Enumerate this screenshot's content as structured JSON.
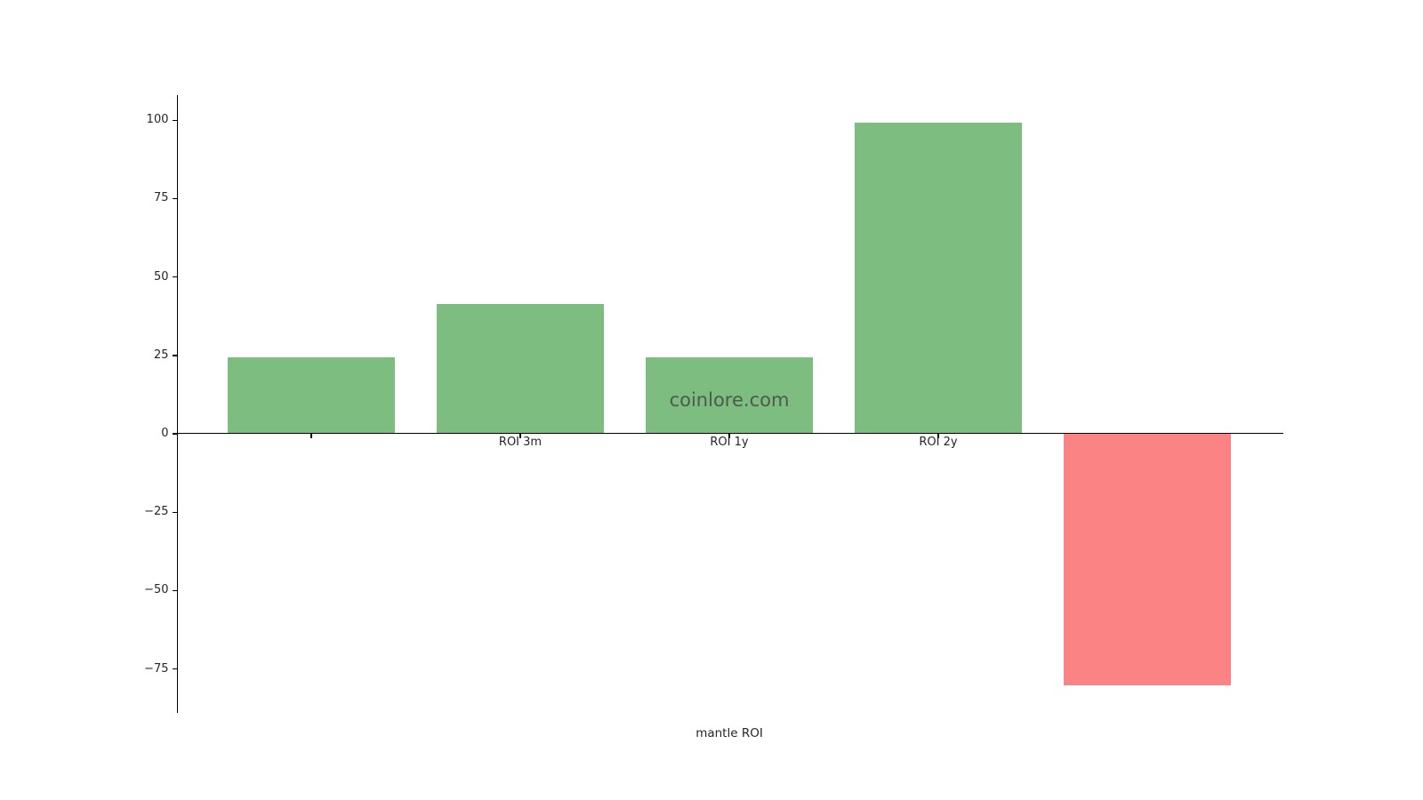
{
  "page": {
    "background": "#ffffff"
  },
  "watermark": {
    "text": "coinlore.com",
    "color": "#3f3f3f"
  },
  "chart_data": {
    "type": "bar",
    "title": "mantle ROI",
    "categories": [
      "",
      "ROI 3m",
      "ROI 1y",
      "ROI 2y",
      ""
    ],
    "values": [
      24,
      41,
      24,
      99,
      -80
    ],
    "bar_colors": {
      "positive": "#7dbd7f",
      "negative": "#fc8383"
    },
    "yticks": [
      100,
      75,
      50,
      25,
      0,
      -25,
      -50,
      -75
    ],
    "ytick_labels": [
      "100",
      "75",
      "50",
      "25",
      "0",
      "−25",
      "−50",
      "−75"
    ],
    "ylim": [
      -89,
      108
    ],
    "xlabel": "",
    "ylabel": "",
    "grid": false,
    "legend": null,
    "axis_color": "#000000",
    "text_color": "#262626"
  }
}
